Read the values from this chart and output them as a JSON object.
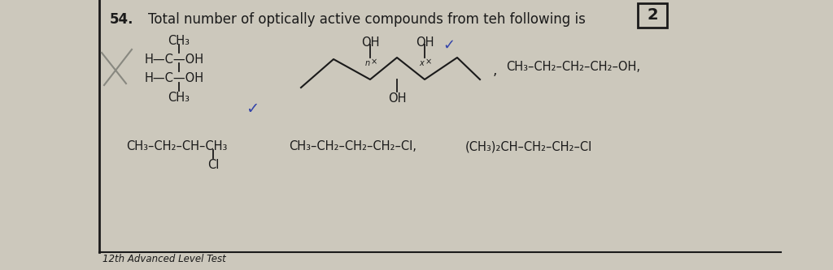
{
  "background_color": "#ccc8bc",
  "text_color": "#1a1a1a",
  "question_number": "54.",
  "question_text": "Total number of optically active compounds from teh following is",
  "answer": "2",
  "compound3": "CH₃–CH₂–CH₂–CH₂–OH,",
  "compound4": "CH₃–CH₂–CH–CH₃",
  "compound5": "CH₃–CH₂–CH₂–CH₂–Cl,",
  "compound6": "(CH₃)₂CH–CH₂–CH₂–Cl",
  "footer": "12th Advanced Level Test",
  "fig_width": 10.24,
  "fig_height": 3.33,
  "dpi": 100
}
